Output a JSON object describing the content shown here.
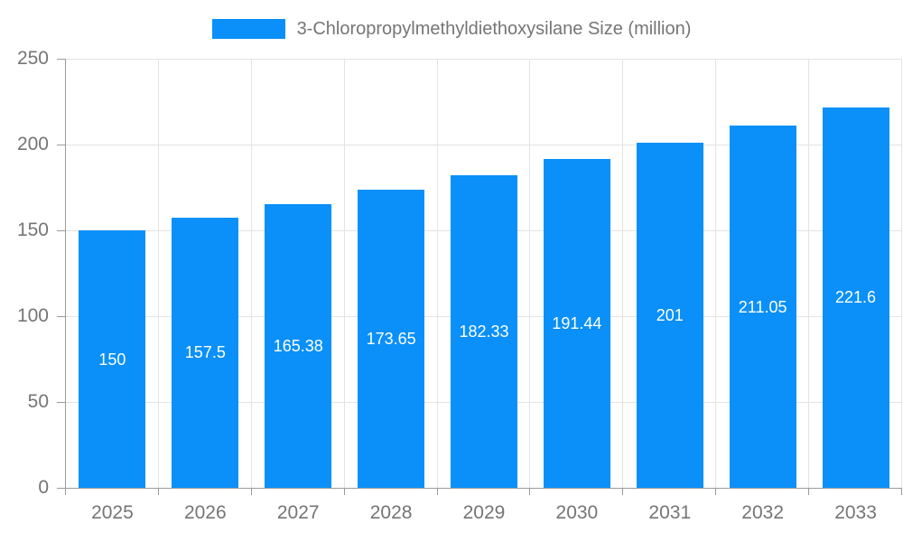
{
  "chart_data": {
    "type": "bar",
    "title": "",
    "legend": "3-Chloropropylmethyldiethoxysilane Size (million)",
    "legend_position": "top",
    "categories": [
      "2025",
      "2026",
      "2027",
      "2028",
      "2029",
      "2030",
      "2031",
      "2032",
      "2033"
    ],
    "values": [
      150,
      157.5,
      165.38,
      173.65,
      182.33,
      191.44,
      201,
      211.05,
      221.6
    ],
    "value_labels": [
      "150",
      "157.5",
      "165.38",
      "173.65",
      "182.33",
      "191.44",
      "201",
      "211.05",
      "221.6"
    ],
    "xlabel": "",
    "ylabel": "",
    "ylim": [
      0,
      250
    ],
    "yticks": [
      0,
      50,
      100,
      150,
      200,
      250
    ],
    "grid": "horizontal and vertical light gray gridlines",
    "colors": {
      "bar": "#0a90f8",
      "grid": "#e3e3e3",
      "axis": "#9a9a9a",
      "tick_text": "#757575",
      "bar_label_text": "#ffffff",
      "background": "#ffffff"
    }
  }
}
